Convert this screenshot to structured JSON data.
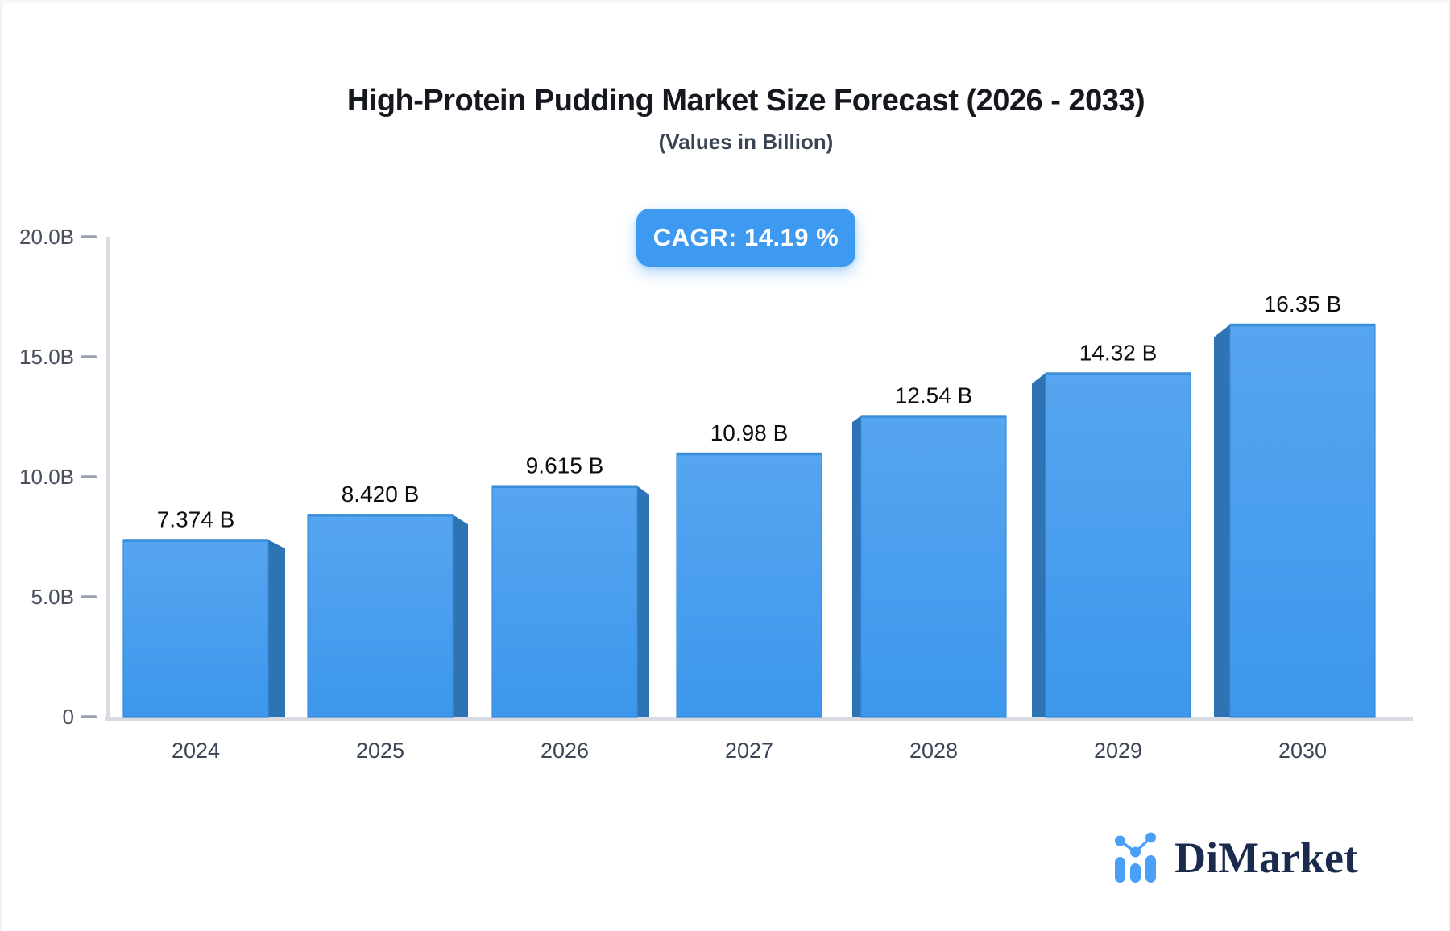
{
  "title": "High-Protein Pudding Market Size Forecast (2026 - 2033)",
  "subtitle": "(Values in Billion)",
  "badge": {
    "label": "CAGR: 14.19 %",
    "color": "#3e9af0"
  },
  "chart_data": {
    "type": "bar",
    "categories": [
      "2024",
      "2025",
      "2026",
      "2027",
      "2028",
      "2029",
      "2030"
    ],
    "values": [
      7.374,
      8.42,
      9.615,
      10.98,
      12.54,
      14.32,
      16.35
    ],
    "value_labels": [
      "7.374 B",
      "8.420 B",
      "9.615 B",
      "10.98 B",
      "12.54 B",
      "14.32 B",
      "16.35 B"
    ],
    "y_ticks": [
      {
        "value": 0,
        "label": "0"
      },
      {
        "value": 5,
        "label": "5.0B"
      },
      {
        "value": 10,
        "label": "10.0B"
      },
      {
        "value": 15,
        "label": "15.0B"
      },
      {
        "value": 20,
        "label": "20.0B"
      }
    ],
    "ylim": [
      0,
      20
    ],
    "grid": false,
    "legend": false,
    "bar_face_color_top": "#56a5f0",
    "bar_face_color_bottom": "#3d97ec",
    "bar_edge_color": "#3a8ed9",
    "bar_side_color": "#2e73b4",
    "axis_line_color": "#d9dbe2",
    "tick_mark_color": "#9aa2af",
    "tick_label_color": "#474f5e",
    "category_label_color": "#3c4656",
    "value_label_color": "#0c0e12"
  },
  "logo": {
    "text": "DiMarket",
    "icon": "bar-chart-logo-icon",
    "text_color": "#1a2b4d",
    "accent_color": "#4aa0f6"
  }
}
